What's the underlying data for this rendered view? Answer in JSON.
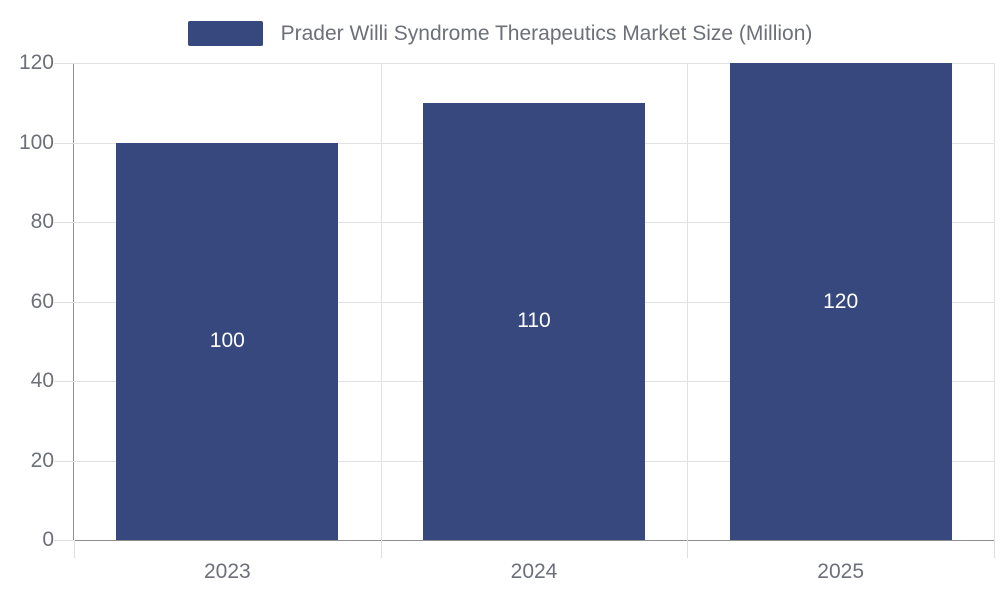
{
  "chart_data": {
    "type": "bar",
    "title": "Prader Willi Syndrome Therapeutics Market Size (Million)",
    "categories": [
      "2023",
      "2024",
      "2025"
    ],
    "values": [
      100,
      110,
      120
    ],
    "data_labels": [
      "100",
      "110",
      "120"
    ],
    "xlabel": "",
    "ylabel": "",
    "ylim": [
      0,
      120
    ],
    "yticks": [
      0,
      20,
      40,
      60,
      80,
      100,
      120
    ],
    "grid": true,
    "legend_position": "top-center",
    "legend_entries": [
      "Prader Willi Syndrome Therapeutics Market Size (Million)"
    ]
  },
  "legend": {
    "label": "Prader Willi Syndrome Therapeutics Market Size (Million)"
  },
  "colors": {
    "bar": "#36487E",
    "axis_line": "#8F8F8F",
    "grid_line": "#E2E2E2",
    "tick_line": "#DFDFDF",
    "tick_label": "#6E7079",
    "value_label": "#FFFFFF",
    "background": "#FFFFFF"
  }
}
